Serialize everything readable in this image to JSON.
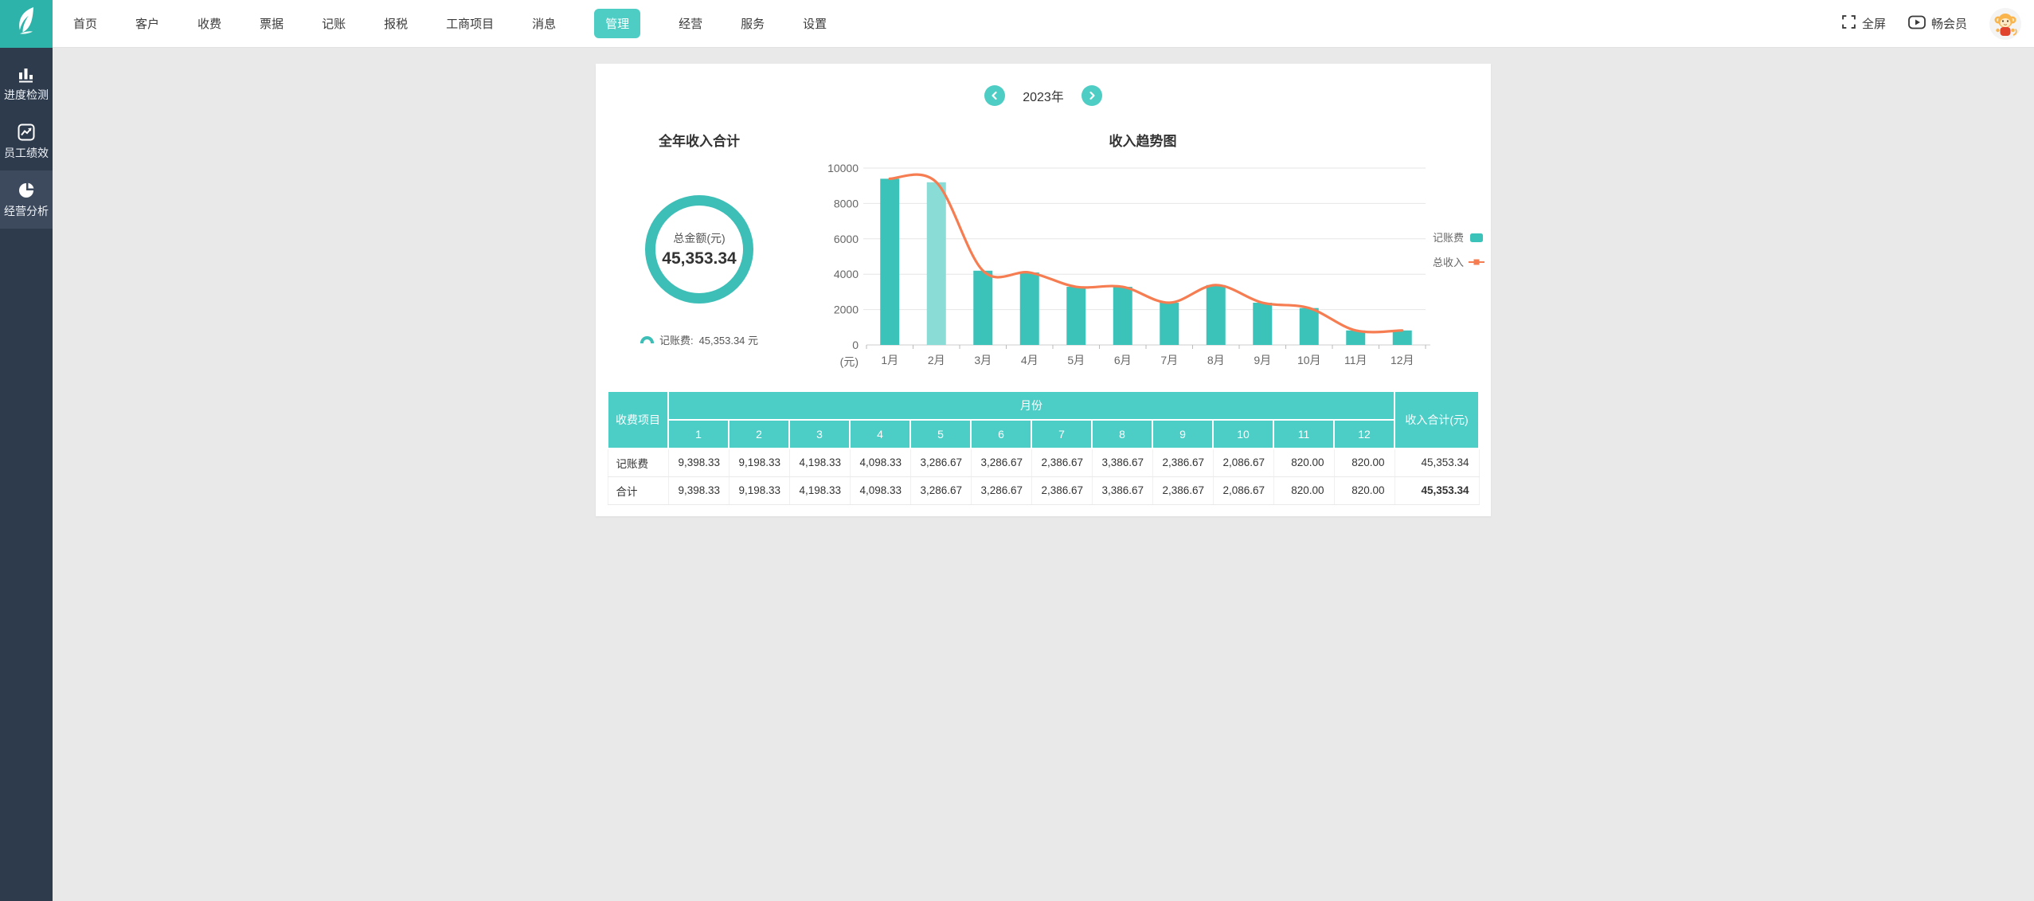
{
  "app": {
    "fullscreen_label": "全屏",
    "member_label": "畅会员"
  },
  "nav": {
    "items": [
      {
        "label": "首页",
        "active": false
      },
      {
        "label": "客户",
        "active": false
      },
      {
        "label": "收费",
        "active": false
      },
      {
        "label": "票据",
        "active": false
      },
      {
        "label": "记账",
        "active": false
      },
      {
        "label": "报税",
        "active": false
      },
      {
        "label": "工商项目",
        "active": false
      },
      {
        "label": "消息",
        "active": false
      },
      {
        "label": "管理",
        "active": true
      },
      {
        "label": "经营",
        "active": false
      },
      {
        "label": "服务",
        "active": false
      },
      {
        "label": "设置",
        "active": false
      }
    ]
  },
  "sidebar": {
    "items": [
      {
        "label": "进度检测",
        "icon": "bar-chart-icon",
        "active": false
      },
      {
        "label": "员工绩效",
        "icon": "performance-chart-icon",
        "active": false
      },
      {
        "label": "经营分析",
        "icon": "pie-chart-icon",
        "active": true
      }
    ]
  },
  "year_selector": {
    "value": "2023年"
  },
  "summary": {
    "title": "全年收入合计",
    "ring_label": "总金额(元)",
    "ring_value": "45,353.34",
    "legend_label": "记账费:",
    "legend_value": "45,353.34 元"
  },
  "chart_data": {
    "type": "bar+line",
    "title": "收入趋势图",
    "categories": [
      "1月",
      "2月",
      "3月",
      "4月",
      "5月",
      "6月",
      "7月",
      "8月",
      "9月",
      "10月",
      "11月",
      "12月"
    ],
    "series": [
      {
        "name": "记账费",
        "type": "bar",
        "color": "#3bc3ba",
        "highlight_index": 1,
        "highlight_color": "#8adcd6",
        "values": [
          9398.33,
          9198.33,
          4198.33,
          4098.33,
          3286.67,
          3286.67,
          2386.67,
          3386.67,
          2386.67,
          2086.67,
          820,
          820
        ]
      },
      {
        "name": "总收入",
        "type": "line",
        "color": "#f67d51",
        "values": [
          9398.33,
          9198.33,
          4198.33,
          4098.33,
          3286.67,
          3286.67,
          2386.67,
          3386.67,
          2386.67,
          2086.67,
          820,
          820
        ]
      }
    ],
    "ylim": [
      0,
      10000
    ],
    "ytick_step": 2000,
    "y_unit": "(元)",
    "grid": true,
    "legend_position": "right"
  },
  "table": {
    "corner_header": "收费项目",
    "month_group_header": "月份",
    "month_headers": [
      "1",
      "2",
      "3",
      "4",
      "5",
      "6",
      "7",
      "8",
      "9",
      "10",
      "11",
      "12"
    ],
    "total_header": "收入合计(元)",
    "rows": [
      {
        "name": "记账费",
        "values": [
          "9,398.33",
          "9,198.33",
          "4,198.33",
          "4,098.33",
          "3,286.67",
          "3,286.67",
          "2,386.67",
          "3,386.67",
          "2,386.67",
          "2,086.67",
          "820.00",
          "820.00"
        ],
        "total": "45,353.34",
        "total_bold": false
      },
      {
        "name": "合计",
        "values": [
          "9,398.33",
          "9,198.33",
          "4,198.33",
          "4,098.33",
          "3,286.67",
          "3,286.67",
          "2,386.67",
          "3,386.67",
          "2,386.67",
          "2,086.67",
          "820.00",
          "820.00"
        ],
        "total": "45,353.34",
        "total_bold": true
      }
    ]
  },
  "colors": {
    "accent": "#4ecdc4",
    "logo_bg": "#2db3a9",
    "bar": "#3bc3ba",
    "bar_highlight": "#8adcd6",
    "line": "#f67d51",
    "table_header_bg": "#4ccdc5",
    "sidebar_bg": "#2e3b4d",
    "sidebar_active_bg": "#3d4a5e",
    "page_bg": "#e9e9e9"
  }
}
